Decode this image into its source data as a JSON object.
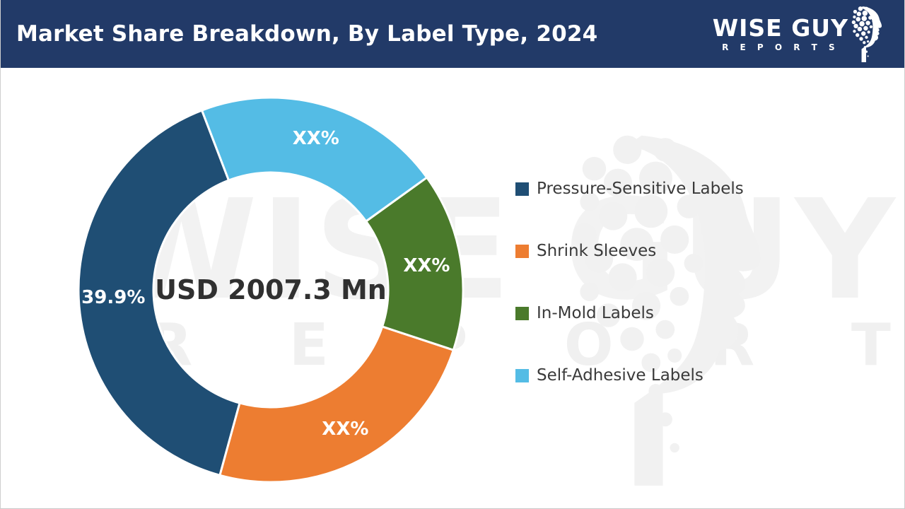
{
  "header": {
    "title": "Market Share Breakdown, By Label Type, 2024",
    "bg_color": "#223A68",
    "logo": {
      "line1": "WISE GUY",
      "line2": "R E P O R T S"
    }
  },
  "watermark": {
    "line1": "WISE GUY",
    "line2": "R E P O R T S"
  },
  "chart_data": {
    "type": "pie",
    "subtype": "donut",
    "title": "Market Share Breakdown, By Label Type, 2024",
    "center_label": "USD 2007.3 Mn",
    "start_angle_deg": 111,
    "direction": "counterclockwise",
    "legend_position": "right",
    "inner_radius_ratio": 0.61,
    "segments": [
      {
        "label": "Pressure-Sensitive Labels",
        "value_pct": 39.9,
        "display_label": "39.9%",
        "color": "#1F4E74"
      },
      {
        "label": "Shrink Sleeves",
        "value_pct": 24.2,
        "display_label": "XX%",
        "color": "#ED7D31"
      },
      {
        "label": "In-Mold Labels",
        "value_pct": 15.0,
        "display_label": "XX%",
        "color": "#4A7A2B"
      },
      {
        "label": "Self-Adhesive Labels",
        "value_pct": 20.9,
        "display_label": "XX%",
        "color": "#54BCE5"
      }
    ]
  }
}
